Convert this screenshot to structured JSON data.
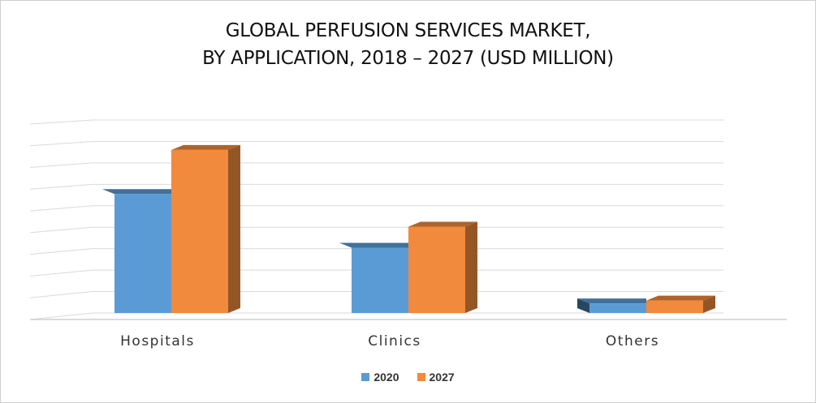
{
  "chart_data": {
    "type": "bar",
    "title_lines": [
      "GLOBAL PERFUSION SERVICES MARKET,",
      "BY APPLICATION, 2018 – 2027 (USD MILLION)"
    ],
    "categories": [
      "Hospitals",
      "Clinics",
      "Others"
    ],
    "series": [
      {
        "name": "2020",
        "values": [
          62,
          34,
          5
        ],
        "color": "#5B9BD5"
      },
      {
        "name": "2027",
        "values": [
          85,
          45,
          6.5
        ],
        "color": "#F18A3C"
      }
    ],
    "ylim": [
      0,
      90
    ],
    "y_tick_labels_shown": false,
    "grid": true,
    "legend": "bottom",
    "style": "3d-clustered-column"
  }
}
